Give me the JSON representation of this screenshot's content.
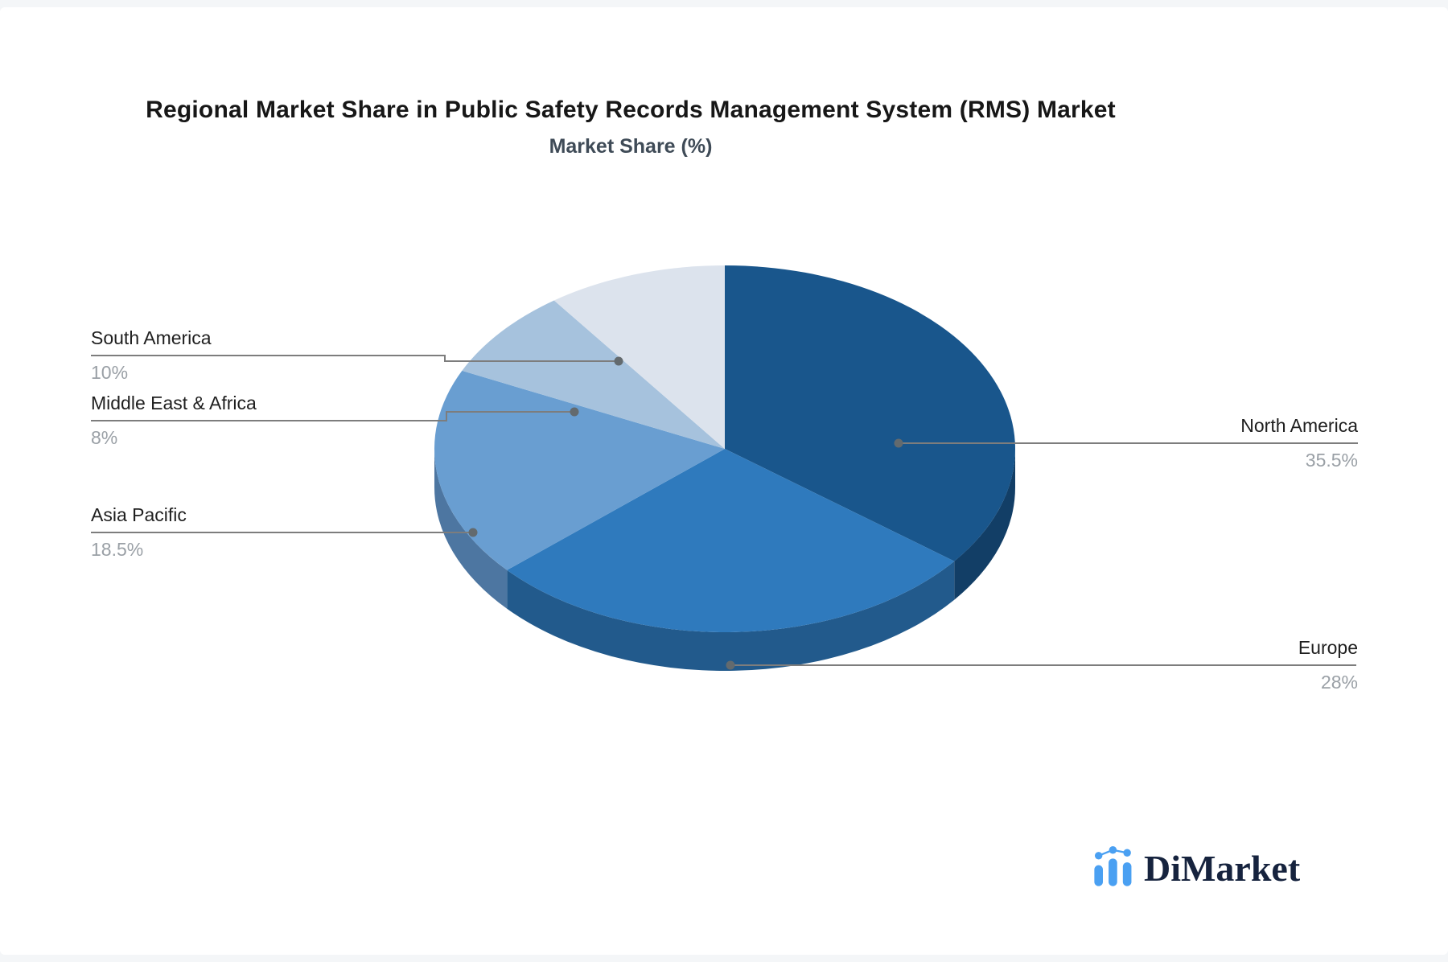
{
  "chart_data": {
    "type": "pie",
    "projection": "3d",
    "title": "Regional Market Share in Public Safety Records Management System (RMS) Market",
    "subtitle": "Market Share (%)",
    "unit": "%",
    "start_angle": "12 o'clock",
    "direction": "clockwise",
    "slices": [
      {
        "name": "North America",
        "value": 35.5,
        "pct_label": "35.5%",
        "color": "#19568c",
        "side_color": "#123e66"
      },
      {
        "name": "Europe",
        "value": 28,
        "pct_label": "28%",
        "color": "#2f7abd",
        "side_color": "#225a8c"
      },
      {
        "name": "Asia Pacific",
        "value": 18.5,
        "pct_label": "18.5%",
        "color": "#699ed1",
        "side_color": "#4d76a1"
      },
      {
        "name": "Middle East & Africa",
        "value": 8,
        "pct_label": "8%",
        "color": "#a6c2dd",
        "side_color": "#7e9cb8"
      },
      {
        "name": "South America",
        "value": 10,
        "pct_label": "10%",
        "color": "#dce3ed",
        "side_color": "#aab8c9"
      }
    ],
    "connector_color": "#7d7d7d",
    "dot_color": "#636a6e",
    "label_color": "#1f1f1f",
    "value_color": "#9aa0a6"
  },
  "branding": {
    "logo_text": "DiMarket",
    "logo_text_color": "#16233e",
    "logo_mark_color": "#4aa0f2"
  }
}
